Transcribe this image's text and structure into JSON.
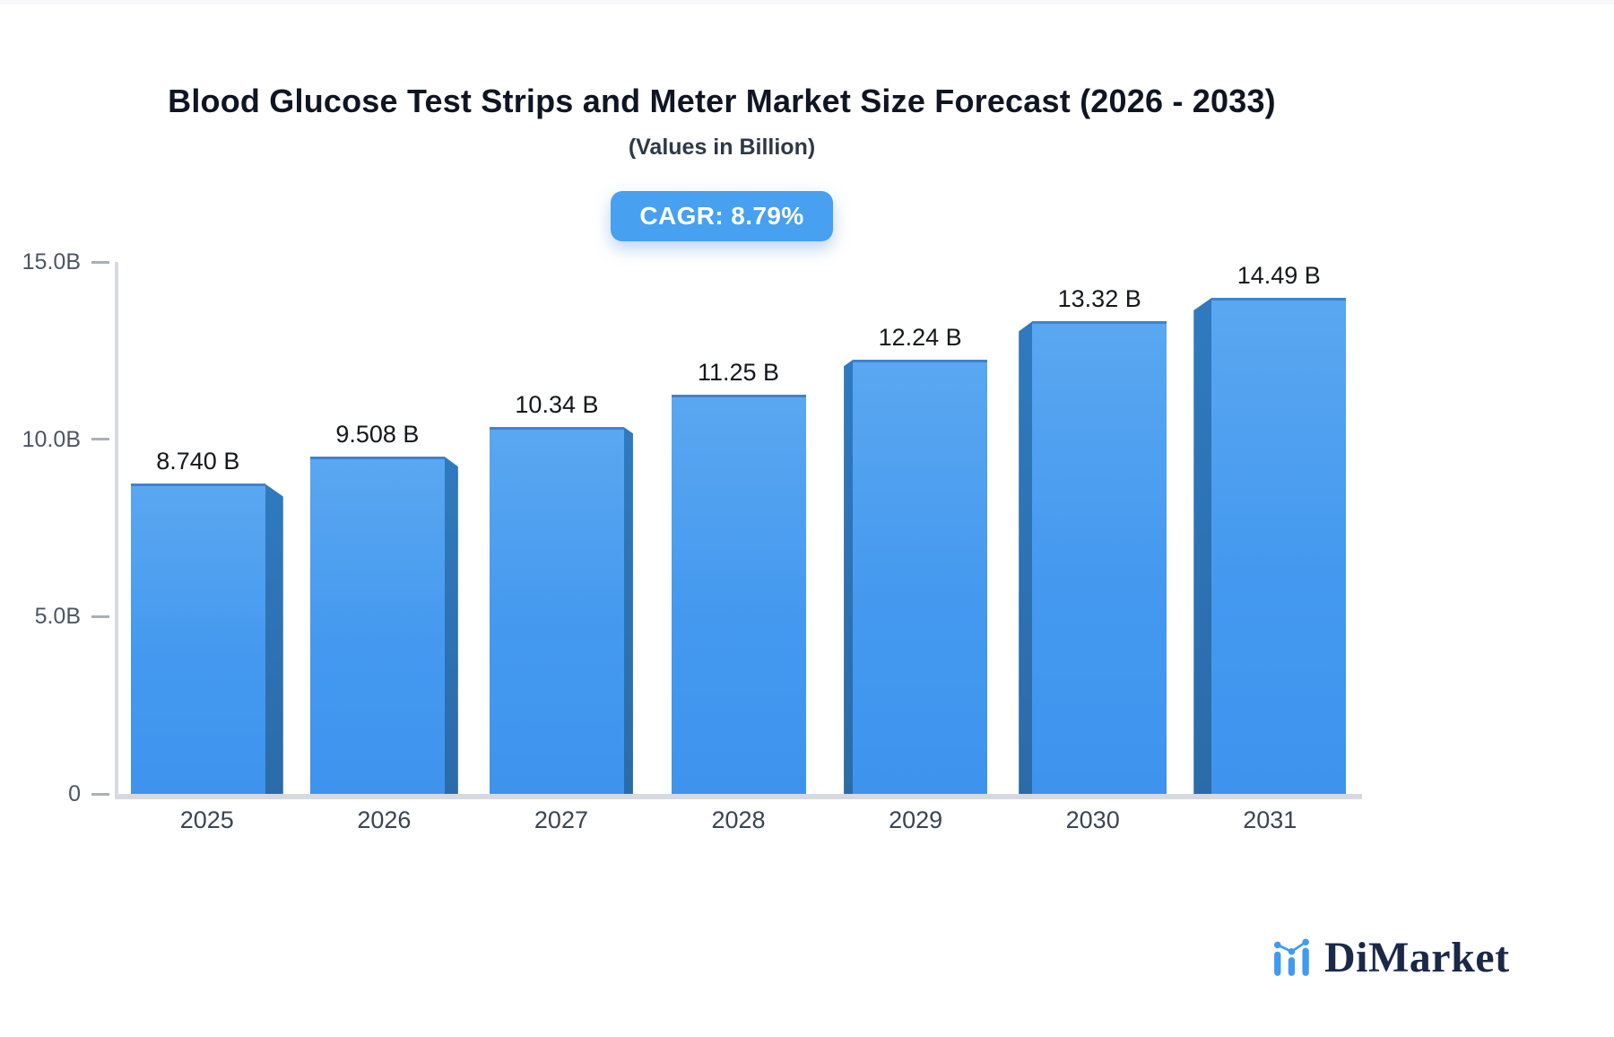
{
  "header": {
    "title": "Blood Glucose Test Strips and Meter Market Size Forecast (2026 - 2033)",
    "subtitle": "(Values in Billion)"
  },
  "badge": {
    "label": "CAGR: 8.79%",
    "bg_color": "#47a0f0",
    "text_color": "#ffffff"
  },
  "chart_data": {
    "type": "bar",
    "title": "Blood Glucose Test Strips and Meter Market Size Forecast (2026 - 2033)",
    "subtitle": "(Values in Billion)",
    "categories": [
      "2025",
      "2026",
      "2027",
      "2028",
      "2029",
      "2030",
      "2031"
    ],
    "values": [
      8.74,
      9.508,
      10.34,
      11.25,
      12.24,
      13.32,
      14.49
    ],
    "value_labels": [
      "8.740 B",
      "9.508 B",
      "10.34 B",
      "11.25 B",
      "12.24 B",
      "13.32 B",
      "14.49 B"
    ],
    "xlabel": "",
    "ylabel": "",
    "ylim": [
      0,
      15
    ],
    "yticks": [
      {
        "label": "15.0B",
        "value": 15
      },
      {
        "label": "10.0B",
        "value": 10
      },
      {
        "label": "5.0B",
        "value": 5
      },
      {
        "label": "0",
        "value": 0
      }
    ],
    "grid": false,
    "legend": false,
    "bar_color": "#4499ef",
    "bar_side_color": "#2d72b4",
    "style": "3d-perspective-bars"
  },
  "logo": {
    "text": "DiMarket",
    "icon": "mini-bar-chart-with-trend-dots",
    "color": "#3e9bf0"
  }
}
